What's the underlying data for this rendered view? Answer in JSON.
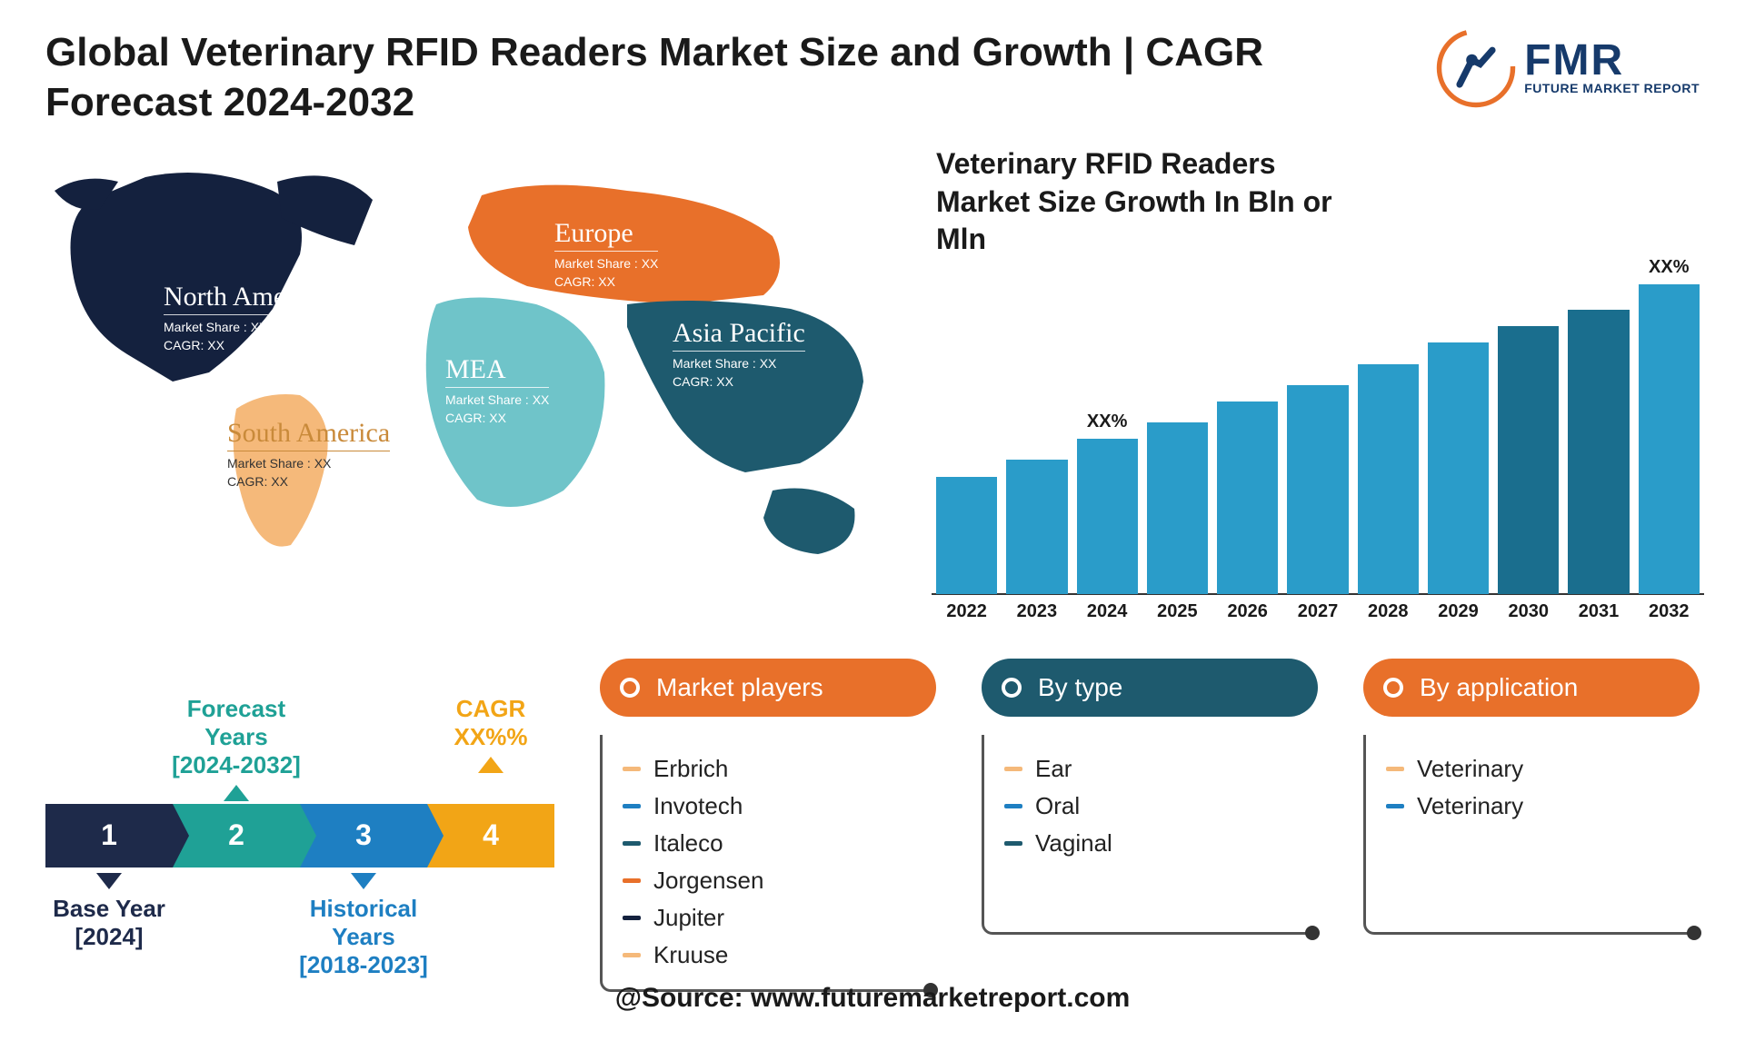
{
  "title": "Global Veterinary RFID Readers Market Size and Growth | CAGR Forecast 2024-2032",
  "logo": {
    "fmr": "FMR",
    "sub": "FUTURE MARKET REPORT"
  },
  "map": {
    "regions": [
      {
        "key": "na",
        "name": "North America",
        "share": "Market Share : XX",
        "cagr": "CAGR: XX",
        "color": "#14213e"
      },
      {
        "key": "sa",
        "name": "South America",
        "share": "Market Share : XX",
        "cagr": "CAGR: XX",
        "color": "#f5b97a"
      },
      {
        "key": "eu",
        "name": "Europe",
        "share": "Market Share : XX",
        "cagr": "CAGR: XX",
        "color": "#e8702a"
      },
      {
        "key": "mea",
        "name": "MEA",
        "share": "Market Share : XX",
        "cagr": "CAGR: XX",
        "color": "#6fc4c9"
      },
      {
        "key": "ap",
        "name": "Asia Pacific",
        "share": "Market Share : XX",
        "cagr": "CAGR: XX",
        "color": "#1e5a6e"
      }
    ]
  },
  "barchart": {
    "type": "bar",
    "title": "Veterinary RFID Readers Market Size Growth In Bln or Mln",
    "categories": [
      "2022",
      "2023",
      "2024",
      "2025",
      "2026",
      "2027",
      "2028",
      "2029",
      "2030",
      "2031",
      "2032"
    ],
    "values": [
      140,
      160,
      185,
      205,
      230,
      250,
      275,
      300,
      320,
      340,
      370
    ],
    "ylim": [
      0,
      380
    ],
    "bar_color": "#2a9cc9",
    "bar_color_alt": "#1a6e8e",
    "alt_indices": [
      8,
      9
    ],
    "annotations": [
      {
        "index": 2,
        "text": "XX%"
      },
      {
        "index": 10,
        "text": "XX%"
      }
    ],
    "label_fontsize": 20,
    "baseline_color": "#333333"
  },
  "timeline": {
    "segments": [
      {
        "num": "1",
        "color": "#1e2a4a",
        "label": "Base Year [2024]",
        "pos": "bottom"
      },
      {
        "num": "2",
        "color": "#1fa196",
        "label": "Forecast Years [2024-2032]",
        "pos": "top"
      },
      {
        "num": "3",
        "color": "#1e7fc2",
        "label": "Historical Years [2018-2023]",
        "pos": "bottom"
      },
      {
        "num": "4",
        "color": "#f2a516",
        "label": "CAGR XX%%",
        "pos": "top"
      }
    ]
  },
  "segments": [
    {
      "title": "Market players",
      "header_color": "#e8702a",
      "items": [
        "Erbrich",
        "Invotech",
        "Italeco",
        "Jorgensen",
        "Jupiter",
        "Kruuse"
      ],
      "tick_colors": [
        "#f5b97a",
        "#1e7fc2",
        "#1e5a6e",
        "#e8702a",
        "#14213e",
        "#f5b97a"
      ]
    },
    {
      "title": "By type",
      "header_color": "#1e5a6e",
      "items": [
        "Ear",
        "Oral",
        "Vaginal"
      ],
      "tick_colors": [
        "#f5b97a",
        "#1e7fc2",
        "#1e5a6e"
      ]
    },
    {
      "title": "By application",
      "header_color": "#e8702a",
      "items": [
        "Veterinary",
        "Veterinary"
      ],
      "tick_colors": [
        "#f5b97a",
        "#1e7fc2"
      ]
    }
  ],
  "source": "@Source: www.futuremarketreport.com"
}
